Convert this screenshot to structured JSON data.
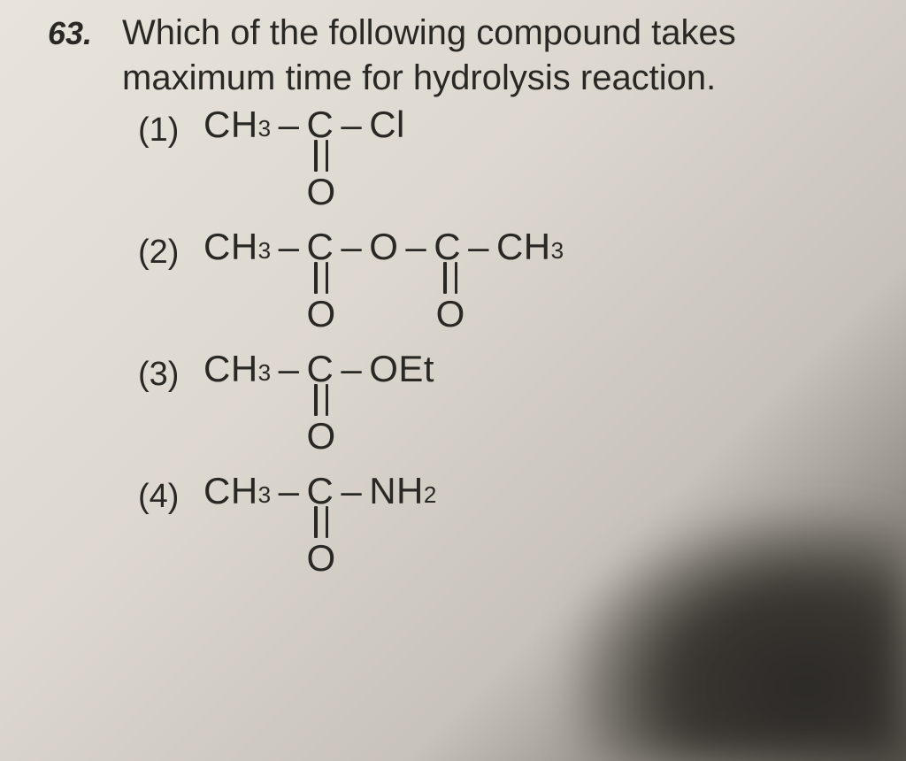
{
  "question_number": "63.",
  "question_text": "Which of the following compound takes maximum time for hydrolysis reaction.",
  "text_color": "#2a2824",
  "background_gradient": [
    "#e8e4dc",
    "#ddd8cf",
    "#c8c3ba",
    "#5a5650"
  ],
  "font_sizes": {
    "q_num": 36,
    "q_text": 40,
    "opt_num": 38,
    "formula": 42
  },
  "options": {
    "1": {
      "label": "(1)",
      "compound": "Acetyl chloride",
      "parts": {
        "ch3": "CH",
        "ch3_sub": "3",
        "c": "C",
        "cl": "Cl",
        "o": "O"
      }
    },
    "2": {
      "label": "(2)",
      "compound": "Acetic anhydride",
      "parts": {
        "ch3a": "CH",
        "ch3a_sub": "3",
        "c1": "C",
        "o_mid": "O",
        "c2": "C",
        "ch3b": "CH",
        "ch3b_sub": "3",
        "o1": "O",
        "o2": "O"
      }
    },
    "3": {
      "label": "(3)",
      "compound": "Ethyl acetate",
      "parts": {
        "ch3": "CH",
        "ch3_sub": "3",
        "c": "C",
        "oet": "OEt",
        "o": "O"
      }
    },
    "4": {
      "label": "(4)",
      "compound": "Acetamide",
      "parts": {
        "ch3": "CH",
        "ch3_sub": "3",
        "c": "C",
        "nh2": "NH",
        "nh2_sub": "2",
        "o": "O"
      }
    }
  }
}
